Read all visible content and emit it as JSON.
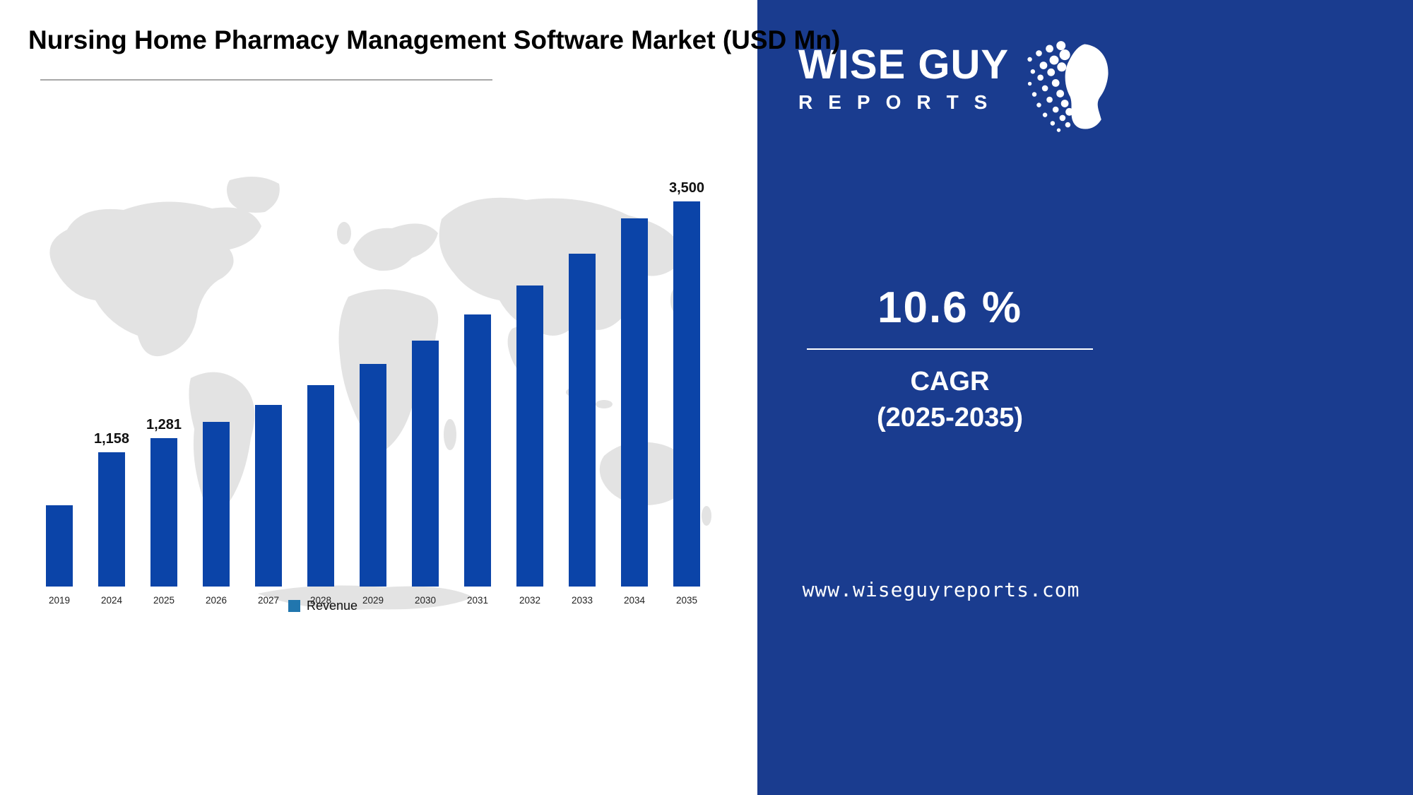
{
  "title": "Nursing Home Pharmacy Management Software Market (USD Mn)",
  "brand": {
    "name_line1": "WISE GUY",
    "name_line2": "REPORTS",
    "website": "www.wiseguyreports.com",
    "panel_color": "#1a3c8f",
    "head_logo_icon": "dotted-head-profile"
  },
  "stats": {
    "cagr_value": "10.6 %",
    "cagr_label": "CAGR",
    "cagr_period": "(2025-2035)"
  },
  "chart_data": {
    "type": "bar",
    "title": "Nursing Home Pharmacy Management Software Market (USD Mn)",
    "categories": [
      "2019",
      "2024",
      "2025",
      "2026",
      "2027",
      "2028",
      "2029",
      "2030",
      "2031",
      "2032",
      "2033",
      "2034",
      "2035"
    ],
    "values": [
      700,
      1158,
      1281,
      1417,
      1567,
      1733,
      1917,
      2120,
      2345,
      2594,
      2869,
      3173,
      3500
    ],
    "data_labels": {
      "2024": "1,158",
      "2025": "1,281",
      "2035": "3,500"
    },
    "bar_color": "#0b44a8",
    "legend": [
      {
        "label": "Revenue",
        "color": "#2176ae"
      }
    ],
    "xlabel": "",
    "ylabel": "",
    "ylim": [
      0,
      3500
    ],
    "grid": false,
    "legend_position": "bottom",
    "map_color": "#e3e3e3"
  }
}
